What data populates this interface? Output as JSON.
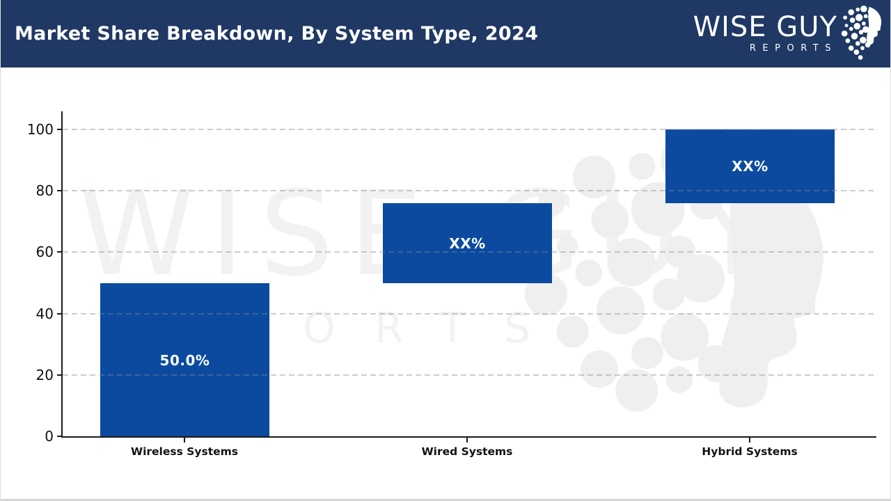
{
  "header": {
    "title": "Market Share Breakdown, By System Type, 2024",
    "logo": {
      "line1": "WISE GUY",
      "line2": "REPORTS"
    }
  },
  "watermark": {
    "line1": "WISE GUY",
    "line2": "REPORTS"
  },
  "colors": {
    "header_bg": "#1f3864",
    "bar": "#0b4a9f",
    "axis": "#1a1a1a",
    "gridline": "#d9d9d9",
    "watermark": "#f2f2f2",
    "bar_label": "#ffffff"
  },
  "chart_data": {
    "type": "bar",
    "subtype": "floating-segment-breakdown",
    "title": "Market Share Breakdown, By System Type, 2024",
    "categories": [
      "Wireless Systems",
      "Wired Systems",
      "Hybrid Systems"
    ],
    "series": [
      {
        "name": "Market Share",
        "segments": [
          {
            "category": "Wireless Systems",
            "base": 0,
            "top": 50
          },
          {
            "category": "Wired Systems",
            "base": 50,
            "top": 76
          },
          {
            "category": "Hybrid Systems",
            "base": 76,
            "top": 100
          }
        ]
      }
    ],
    "bar_labels": [
      "50.0%",
      "XX%",
      "XX%"
    ],
    "ylim": [
      0,
      106
    ],
    "yticks": [
      0,
      20,
      40,
      60,
      80,
      100
    ],
    "xlabel": "",
    "ylabel": "",
    "grid": "dashed-horizontal",
    "legend": "none"
  }
}
